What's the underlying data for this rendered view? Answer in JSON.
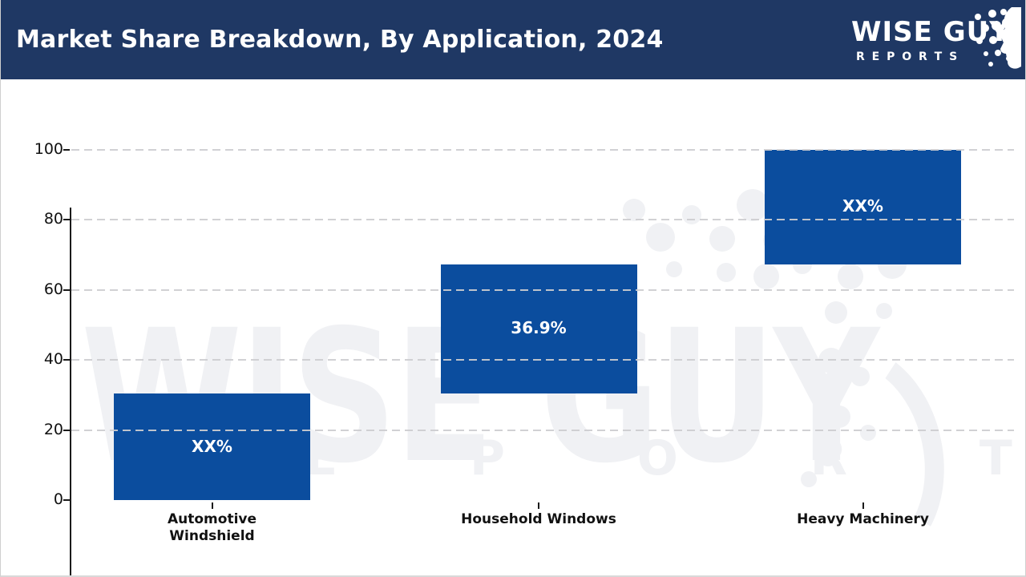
{
  "header": {
    "title": "Market Share Breakdown, By Application, 2024",
    "bg_color": "#1f3864",
    "logo": {
      "line1": "WISE GUY",
      "line2": "R E P O R T S"
    }
  },
  "watermark": {
    "line1": "WISE GUY",
    "line2": "R E P O R T S"
  },
  "chart_data": {
    "type": "bar",
    "variant": "floating-waterfall",
    "title": "Market Share Breakdown, By Application, 2024",
    "categories": [
      "Automotive Windshield",
      "Household Windows",
      "Heavy Machinery"
    ],
    "category_label_lines": [
      [
        "Automotive",
        "Windshield"
      ],
      [
        "Household Windows"
      ],
      [
        "Heavy Machinery"
      ]
    ],
    "segments": [
      {
        "category": "Automotive Windshield",
        "start": 0,
        "end": 30.4,
        "label": "XX%"
      },
      {
        "category": "Household Windows",
        "start": 30.4,
        "end": 67.3,
        "label": "36.9%"
      },
      {
        "category": "Heavy Machinery",
        "start": 67.3,
        "end": 100,
        "label": "XX%"
      }
    ],
    "ylim": [
      0,
      106
    ],
    "yticks": [
      0,
      20,
      40,
      60,
      80,
      100
    ],
    "xlabel": "",
    "ylabel": "",
    "bar_color": "#0b4d9e",
    "bar_label_color": "#ffffff",
    "grid": {
      "axis": "y",
      "style": "dashed",
      "color": "#d9d9d9",
      "above_bars": true
    },
    "legend": "none"
  }
}
